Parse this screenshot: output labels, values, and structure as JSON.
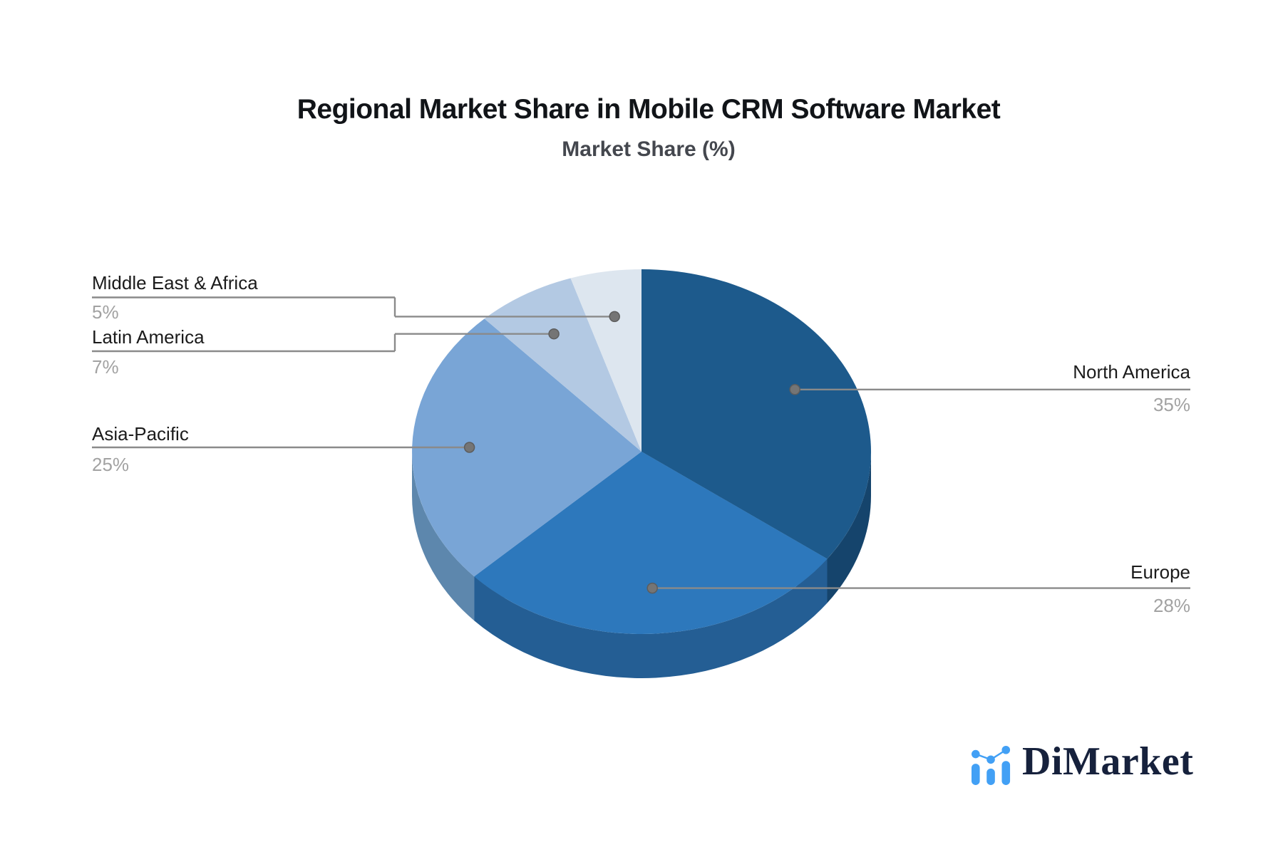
{
  "header": {
    "title": "Regional Market Share in Mobile CRM Software Market",
    "subtitle": "Market Share (%)"
  },
  "branding": {
    "logo_text": "DiMarket",
    "logo_icon": "bar-chart-trend-icon",
    "logo_icon_color": "#42a0f5",
    "logo_text_color": "#16213c"
  },
  "chart_data": {
    "type": "pie",
    "style": "3d-pie",
    "title": "Regional Market Share in Mobile CRM Software Market",
    "subtitle": "Market Share (%)",
    "unit": "%",
    "start_angle": "12-oclock",
    "direction": "clockwise",
    "legend": "none",
    "categories": [
      "North America",
      "Europe",
      "Asia-Pacific",
      "Latin America",
      "Middle East & Africa"
    ],
    "values": [
      35,
      28,
      25,
      7,
      5
    ],
    "slices": [
      {
        "label": "North America",
        "value": 35,
        "pct": "35%",
        "color_top": "#1d5a8c",
        "color_side": "#15446c",
        "callout": "right"
      },
      {
        "label": "Europe",
        "value": 28,
        "pct": "28%",
        "color_top": "#2d78bc",
        "color_side": "#245e94",
        "callout": "right"
      },
      {
        "label": "Asia-Pacific",
        "value": 25,
        "pct": "25%",
        "color_top": "#79a5d6",
        "color_side": "#5d87ad",
        "callout": "left"
      },
      {
        "label": "Latin America",
        "value": 7,
        "pct": "7%",
        "color_top": "#b3c9e3",
        "color_side": "#8fa9c4",
        "callout": "left"
      },
      {
        "label": "Middle East & Africa",
        "value": 5,
        "pct": "5%",
        "color_top": "#dde6ef",
        "color_side": "#b9c5d2",
        "callout": "left"
      }
    ],
    "label_text_color": "#1b1b1b",
    "pct_text_color": "#a2a2a2",
    "connector_color": "#8a8a8a",
    "wall_highlight_color": "#4181bd"
  }
}
